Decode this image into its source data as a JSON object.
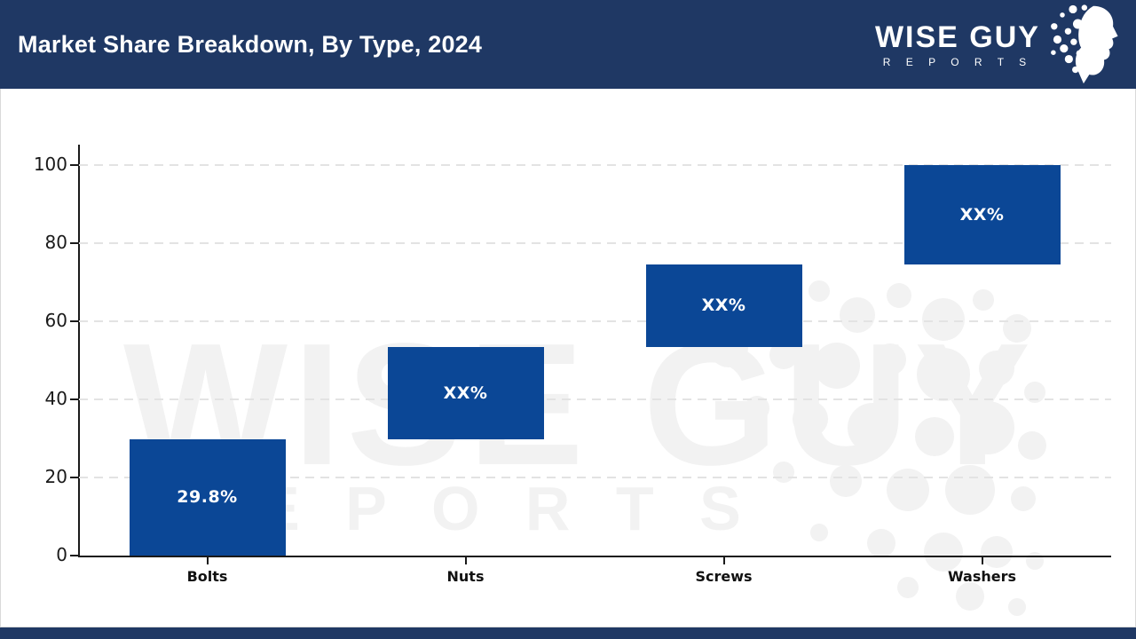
{
  "header": {
    "title": "Market Share Breakdown, By Type, 2024",
    "logo": {
      "name": "WISE GUY",
      "subname": "R E P O R T S"
    }
  },
  "watermark": {
    "line1": "WISE GUY",
    "line2": "R E P O R T S"
  },
  "colors": {
    "header_bg": "#1f3864",
    "footer_bg": "#1f3864",
    "bar": "#0b4796",
    "bar_label": "#ffffff",
    "axis": "#1a1a1a",
    "grid": "#e3e3e3",
    "tick_label": "#1a1a1a",
    "watermark": "#f2f2f2"
  },
  "chart_data": {
    "type": "bar",
    "variant": "waterfall",
    "title": "Market Share Breakdown, By Type, 2024",
    "categories": [
      "Bolts",
      "Nuts",
      "Screws",
      "Washers"
    ],
    "segments": [
      {
        "category": "Bolts",
        "start": 0,
        "end": 29.8,
        "label": "29.8%"
      },
      {
        "category": "Nuts",
        "start": 29.8,
        "end": 53.5,
        "label": "XX%"
      },
      {
        "category": "Screws",
        "start": 53.5,
        "end": 74.5,
        "label": "XX%"
      },
      {
        "category": "Washers",
        "start": 74.5,
        "end": 100,
        "label": "XX%"
      }
    ],
    "xlabel": "",
    "ylabel": "",
    "ylim": [
      0,
      105
    ],
    "yticks": [
      0,
      20,
      40,
      60,
      80,
      100
    ],
    "grid": "horizontal-dashed",
    "legend": "none",
    "unit": "%"
  }
}
